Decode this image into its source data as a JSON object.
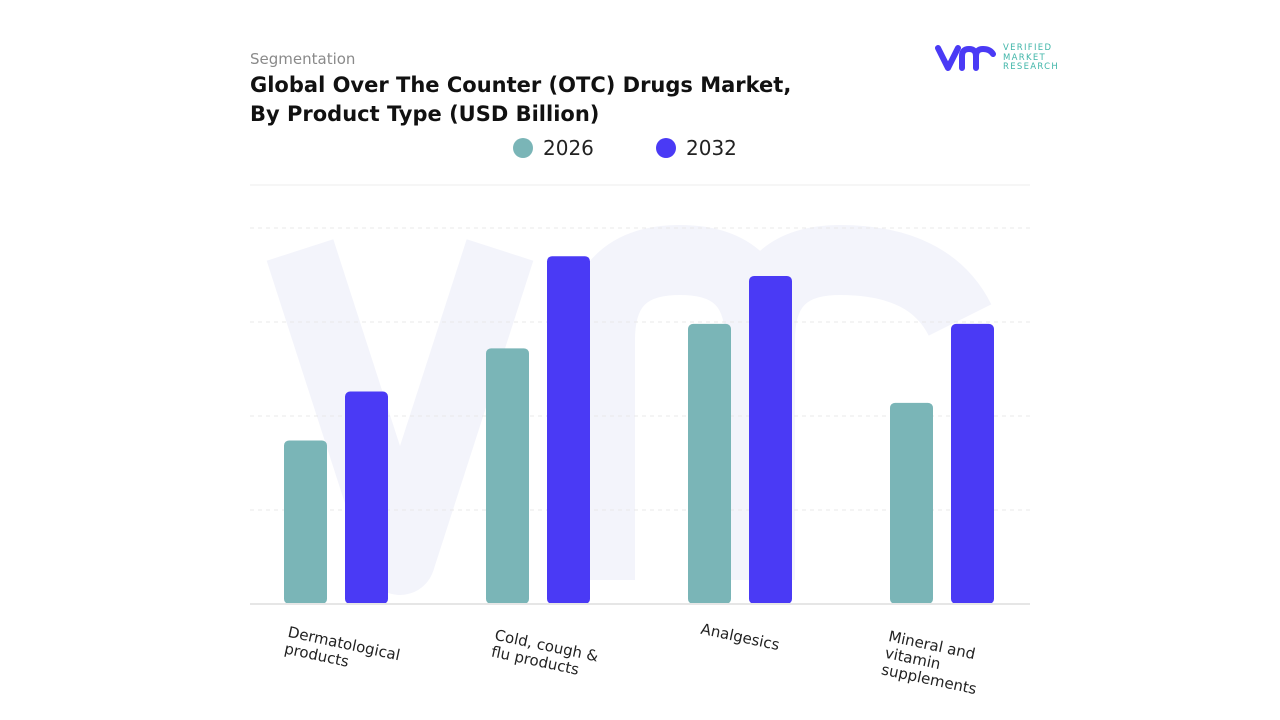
{
  "header": {
    "segment_label": "Segmentation",
    "title": "Global Over The Counter (OTC) Drugs Market, By Product Type (USD Billion)"
  },
  "logo": {
    "text_lines": [
      "VERIFIED",
      "MARKET",
      "RESEARCH"
    ],
    "mark": "vmr"
  },
  "colors": {
    "2026": "#7ab5b7",
    "2032": "#4a3af5",
    "watermark": "#f1f2fa"
  },
  "chart_data": {
    "type": "bar",
    "title": "Global Over The Counter (OTC) Drugs Market, By Product Type (USD Billion)",
    "categories": [
      "Dermatological products",
      "Cold, cough & flu products",
      "Analgesics",
      "Mineral and vitamin supplements"
    ],
    "series": [
      {
        "name": "2026",
        "values": [
          1.74,
          2.72,
          2.98,
          2.14
        ]
      },
      {
        "name": "2032",
        "values": [
          2.26,
          3.7,
          3.49,
          2.98
        ]
      }
    ],
    "ylim": [
      0,
      4
    ],
    "grid": true,
    "legend": "top",
    "xlabel": "",
    "ylabel": ""
  }
}
